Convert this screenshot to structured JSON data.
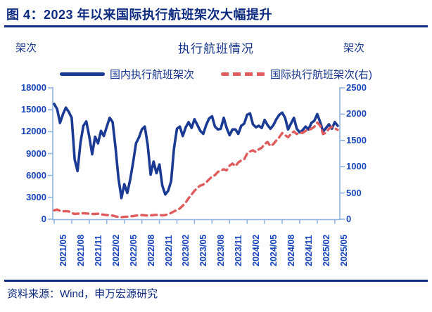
{
  "header": {
    "title": "图 4：2023 年以来国际执行航班架次大幅提升"
  },
  "chart": {
    "title": "执行航班情况",
    "left_axis_unit": "架次",
    "right_axis_unit": "架次",
    "legend": [
      {
        "label": "国内执行航班架次",
        "color": "#1A3A94",
        "style": "solid"
      },
      {
        "label": "国际执行航班架次(右)",
        "color": "#E05C5C",
        "style": "dashed"
      }
    ]
  },
  "chart_data": {
    "type": "line",
    "title": "执行航班情况",
    "grid": "off",
    "legend_position": "top",
    "x_tick_labels": [
      "2021/05",
      "2021/08",
      "2021/11",
      "2022/02",
      "2022/05",
      "2022/08",
      "2022/11",
      "2023/02",
      "2023/05",
      "2023/08",
      "2023/11",
      "2024/02",
      "2024/05",
      "2024/08",
      "2024/11",
      "2025/02",
      "2025/05"
    ],
    "x_tick_indices": [
      0,
      6,
      12,
      18,
      24,
      30,
      36,
      42,
      48,
      54,
      60,
      66,
      72,
      78,
      84,
      90,
      96
    ],
    "x_resolution": "half-month, 2021/05 to 2025/05",
    "left_axis": {
      "label": "架次",
      "min": 0,
      "max": 18000,
      "ticks": [
        0,
        3000,
        6000,
        9000,
        12000,
        15000,
        18000
      ]
    },
    "right_axis": {
      "label": "架次",
      "min": 0,
      "max": 2500,
      "ticks": [
        0,
        500,
        1000,
        1500,
        2000,
        2500
      ]
    },
    "series": [
      {
        "name": "国内执行航班架次",
        "axis": "left",
        "color": "#1A3A94",
        "style": "solid",
        "values": [
          15800,
          15100,
          13200,
          14400,
          15300,
          14700,
          13900,
          8200,
          6600,
          10500,
          12800,
          13400,
          11300,
          8900,
          11300,
          10400,
          12100,
          11400,
          12700,
          13900,
          13300,
          9800,
          5600,
          2900,
          4800,
          3600,
          5400,
          7800,
          10400,
          11200,
          12300,
          12700,
          10200,
          6100,
          7900,
          6300,
          7500,
          4600,
          3400,
          3900,
          5200,
          9700,
          12400,
          12700,
          11400,
          12600,
          13300,
          12500,
          13700,
          12900,
          12100,
          11700,
          12900,
          13800,
          14100,
          12700,
          12300,
          12400,
          13900,
          12500,
          11500,
          12300,
          12300,
          11700,
          12800,
          13100,
          14300,
          14500,
          13000,
          12600,
          12800,
          12500,
          13600,
          12900,
          12400,
          12900,
          13700,
          14300,
          14600,
          13900,
          12300,
          13100,
          13900,
          12400,
          11900,
          12200,
          12700,
          12300,
          13200,
          13500,
          14400,
          13300,
          12000,
          12500,
          13000,
          12400,
          13300,
          12800
        ]
      },
      {
        "name": "国际执行航班架次(右)",
        "axis": "right",
        "color": "#E05C5C",
        "style": "dashed",
        "values": [
          170,
          185,
          160,
          150,
          155,
          150,
          120,
          100,
          105,
          110,
          115,
          110,
          105,
          100,
          100,
          105,
          95,
          85,
          80,
          75,
          70,
          55,
          45,
          40,
          45,
          50,
          55,
          60,
          70,
          75,
          80,
          75,
          70,
          75,
          80,
          85,
          80,
          75,
          80,
          95,
          120,
          150,
          175,
          205,
          260,
          320,
          400,
          470,
          540,
          600,
          640,
          660,
          700,
          760,
          810,
          840,
          900,
          930,
          950,
          930,
          1020,
          1060,
          1010,
          1080,
          1120,
          1140,
          1250,
          1290,
          1310,
          1280,
          1330,
          1360,
          1430,
          1470,
          1390,
          1430,
          1500,
          1560,
          1640,
          1600,
          1560,
          1620,
          1670,
          1620,
          1650,
          1640,
          1680,
          1700,
          1720,
          1760,
          1840,
          1780,
          1620,
          1650,
          1720,
          1760,
          1730,
          1700
        ]
      }
    ]
  },
  "footer": {
    "source": "资料来源：Wind，申万宏源研究"
  },
  "colors": {
    "navy_text": "#0D2B80",
    "tick_label_blue": "#1745BB",
    "domestic_line": "#1A3A94",
    "international_line": "#E05C5C",
    "axis_line": "#8FB3E0"
  }
}
